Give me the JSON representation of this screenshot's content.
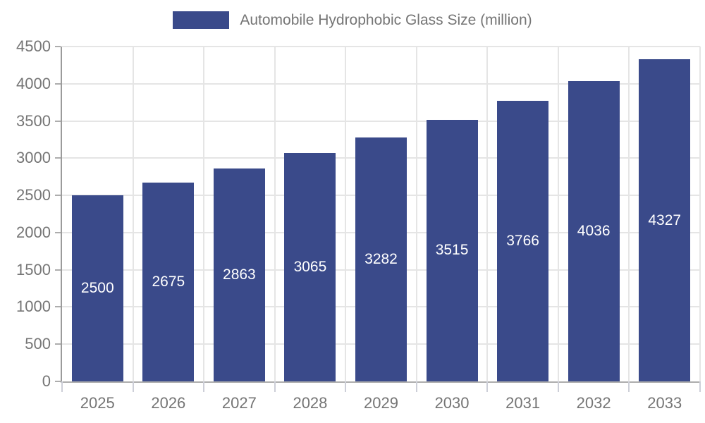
{
  "chart_data": {
    "type": "bar",
    "title": "",
    "legend": "Automobile Hydrophobic Glass Size (million)",
    "legend_position": "top-center",
    "categories": [
      "2025",
      "2026",
      "2027",
      "2028",
      "2029",
      "2030",
      "2031",
      "2032",
      "2033"
    ],
    "values": [
      2500,
      2675,
      2863,
      3065,
      3282,
      3515,
      3766,
      4036,
      4327
    ],
    "value_labels_shown": true,
    "value_label_position": "centered-inside-bar",
    "xlabel": "",
    "ylabel": "",
    "ylim": [
      0,
      4500
    ],
    "ytick_step": 500,
    "grid": true,
    "colors": {
      "bar": "#3A4A8A",
      "value_label": "#FFFFFF",
      "axis_text": "#757575",
      "gridline": "#E5E5E5",
      "axis_line": "#9B9B9B",
      "background": "#FFFFFF"
    }
  }
}
